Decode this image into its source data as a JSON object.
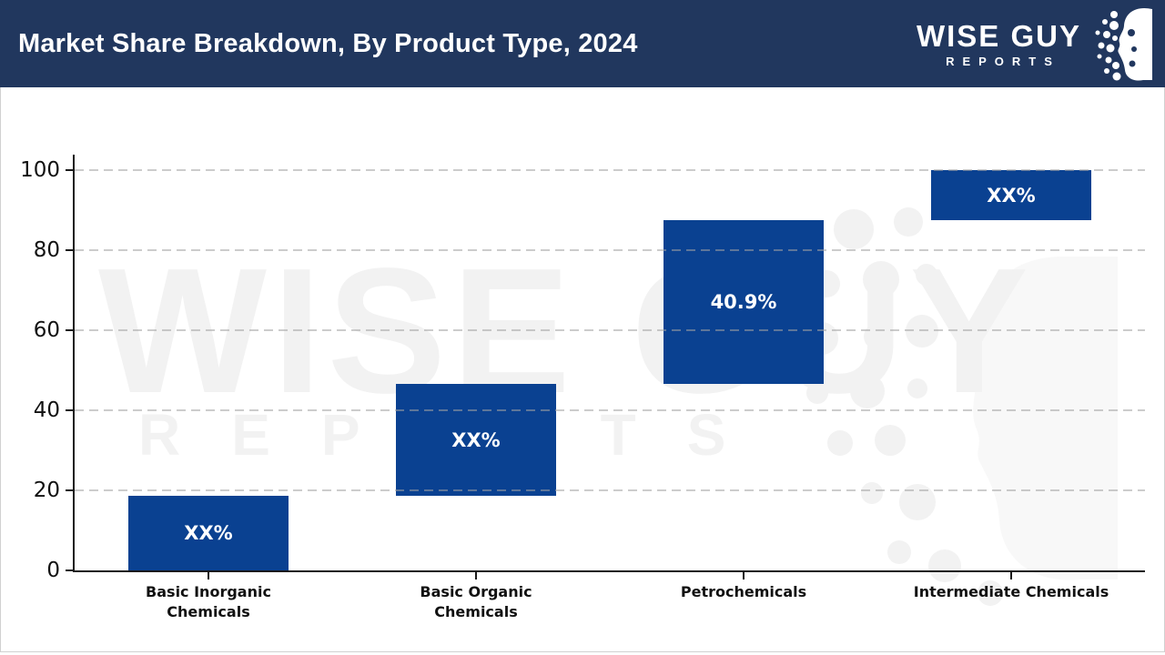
{
  "header": {
    "title": "Market Share Breakdown, By Product Type, 2024",
    "logo_line1": "WISE GUY",
    "logo_line2": "REPORTS"
  },
  "watermark": {
    "line1": "WISE GUY",
    "line2": "REPORTS"
  },
  "colors": {
    "header_bg": "#21375E",
    "bar": "#0A4191",
    "bar_label": "#FFFFFF",
    "gridline": "#D8D8D8",
    "axis": "#1A1A1A",
    "watermark": "#F2F2F2"
  },
  "chart_data": {
    "type": "bar",
    "variant": "floating-segment-waterfall",
    "title": "Market Share Breakdown, By Product Type, 2024",
    "categories": [
      "Basic Inorganic Chemicals",
      "Basic Organic Chemicals",
      "Petrochemicals",
      "Intermediate Chemicals"
    ],
    "bars": [
      {
        "category": "Basic Inorganic Chemicals",
        "start": 0,
        "end": 18.6,
        "label": "XX%"
      },
      {
        "category": "Basic Organic Chemicals",
        "start": 18.6,
        "end": 46.6,
        "label": "XX%"
      },
      {
        "category": "Petrochemicals",
        "start": 46.6,
        "end": 87.5,
        "label": "40.9%"
      },
      {
        "category": "Intermediate Chemicals",
        "start": 87.5,
        "end": 100,
        "label": "XX%"
      }
    ],
    "yticks": [
      0,
      20,
      40,
      60,
      80,
      100
    ],
    "ylim": [
      0,
      100
    ],
    "xlabel": "",
    "ylabel": "",
    "grid": "horizontal-dashed",
    "legend": "none"
  }
}
